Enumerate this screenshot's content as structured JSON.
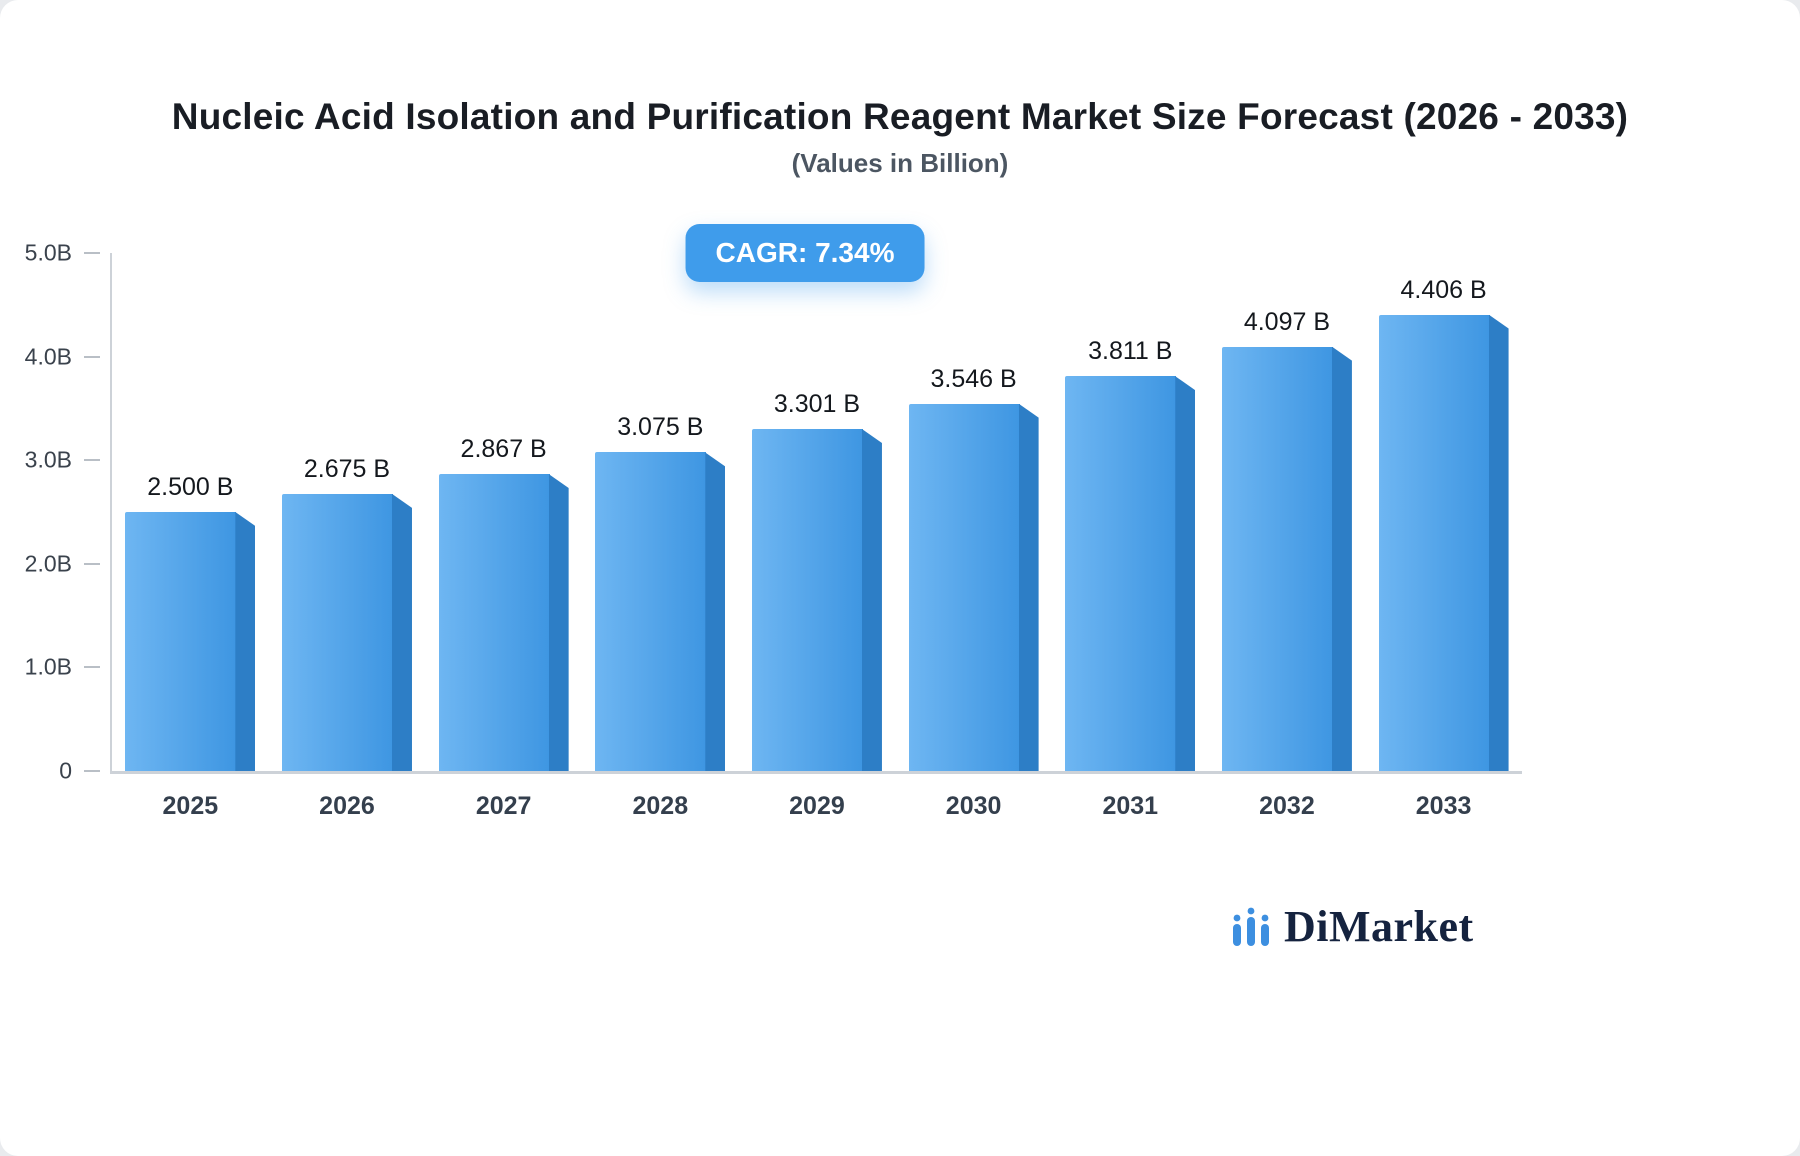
{
  "title": "Nucleic Acid Isolation and Purification Reagent Market Size Forecast (2026 - 2033)",
  "subtitle": "(Values in Billion)",
  "cagr_badge": "CAGR: 7.34%",
  "logo": {
    "text": "DiMarket"
  },
  "chart_data": {
    "type": "bar",
    "title": "Nucleic Acid Isolation and Purification Reagent Market Size Forecast (2026 - 2033)",
    "subtitle": "(Values in Billion)",
    "categories": [
      "2025",
      "2026",
      "2027",
      "2028",
      "2029",
      "2030",
      "2031",
      "2032",
      "2033"
    ],
    "values": [
      2.5,
      2.675,
      2.867,
      3.075,
      3.301,
      3.546,
      3.811,
      4.097,
      4.406
    ],
    "value_labels": [
      "2.500 B",
      "2.675 B",
      "2.867 B",
      "3.075 B",
      "3.301 B",
      "3.546 B",
      "3.811 B",
      "4.097 B",
      "4.406 B"
    ],
    "annotations": [
      "CAGR: 7.34%"
    ],
    "xlabel": "",
    "ylabel": "",
    "ylim": [
      0,
      5
    ],
    "yticks": [
      {
        "label": "5.0B",
        "value": 5
      },
      {
        "label": "4.0B",
        "value": 4
      },
      {
        "label": "3.0B",
        "value": 3
      },
      {
        "label": "2.0B",
        "value": 2
      },
      {
        "label": "1.0B",
        "value": 1
      },
      {
        "label": "0",
        "value": 0
      }
    ],
    "grid": false,
    "legend": "none",
    "bar_front_color_left": "#6eb6f2",
    "bar_front_color_right": "#3e96e2",
    "bar_side_color": "#2d7ec6",
    "badge_color": "#3f9ceb"
  }
}
